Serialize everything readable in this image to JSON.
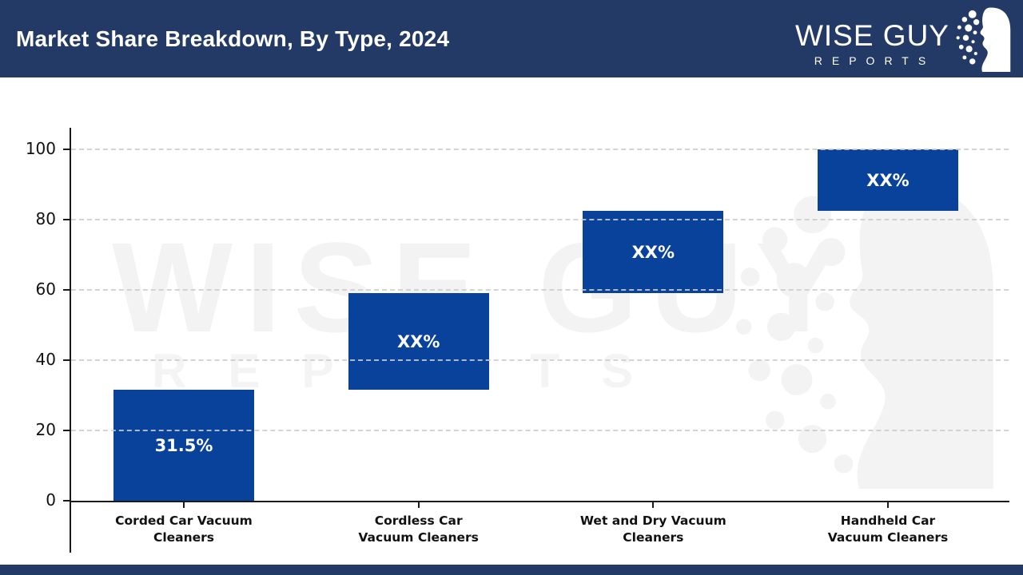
{
  "header": {
    "title": "Market Share Breakdown, By Type, 2024",
    "background_color": "#233A66",
    "logo": {
      "line1": "WISE GUY",
      "line2": "REPORTS"
    }
  },
  "watermark": {
    "line1": "WISE GUY",
    "line2": "REPORTS"
  },
  "chart_data": {
    "type": "bar",
    "subtype": "waterfall",
    "title": "Market Share Breakdown, By Type, 2024",
    "categories": [
      "Corded Car Vacuum Cleaners",
      "Cordless Car Vacuum Cleaners",
      "Wet and Dry Vacuum Cleaners",
      "Handheld Car Vacuum Cleaners"
    ],
    "category_lines": [
      [
        "Corded Car Vacuum",
        "Cleaners"
      ],
      [
        "Cordless Car",
        "Vacuum Cleaners"
      ],
      [
        "Wet and Dry Vacuum",
        "Cleaners"
      ],
      [
        "Handheld Car",
        "Vacuum Cleaners"
      ]
    ],
    "segments": [
      {
        "start": 0,
        "end": 31.5,
        "label": "31.5%"
      },
      {
        "start": 31.5,
        "end": 59,
        "label": "XX%"
      },
      {
        "start": 59,
        "end": 82.5,
        "label": "XX%"
      },
      {
        "start": 82.5,
        "end": 100,
        "label": "XX%"
      }
    ],
    "y_ticks": [
      0,
      20,
      40,
      60,
      80,
      100
    ],
    "ylim": [
      0,
      107
    ],
    "xlabel": "",
    "ylabel": "",
    "grid": "dashed horizontal",
    "legend": "none",
    "bar_color": "#08429B",
    "bar_label_color": "#ffffff",
    "axis_color": "#1a1a1a"
  },
  "footer": {
    "background_color": "#233A66"
  }
}
